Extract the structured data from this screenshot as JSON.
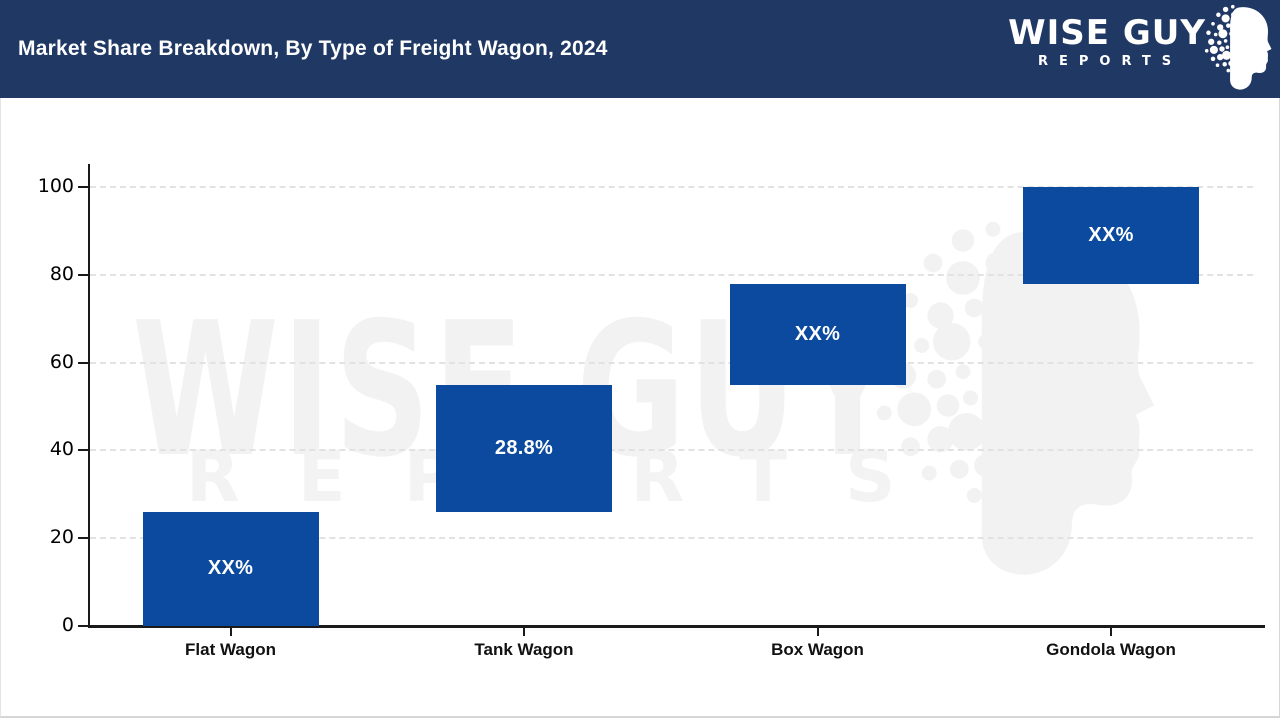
{
  "header": {
    "title": "Market Share Breakdown, By Type of Freight Wagon, 2024",
    "logo": {
      "line1": "WISE GUY",
      "line2": "REPORTS"
    }
  },
  "watermark": {
    "line1": "WISE GUY",
    "line2": "REPORTS"
  },
  "chart_data": {
    "type": "bar",
    "subtype": "floating-segment-waterfall",
    "title": "Market Share Breakdown, By Type of Freight Wagon, 2024",
    "categories": [
      "Flat Wagon",
      "Tank Wagon",
      "Box Wagon",
      "Gondola Wagon"
    ],
    "series": [
      {
        "name": "Market share (%)",
        "segments": [
          {
            "category": "Flat Wagon",
            "start": 0,
            "end": 26,
            "label": "XX%"
          },
          {
            "category": "Tank Wagon",
            "start": 26,
            "end": 54.8,
            "label": "28.8%"
          },
          {
            "category": "Box Wagon",
            "start": 54.8,
            "end": 78,
            "label": "XX%"
          },
          {
            "category": "Gondola Wagon",
            "start": 78,
            "end": 100,
            "label": "XX%"
          }
        ]
      }
    ],
    "xlabel": "",
    "ylabel": "",
    "ylim": [
      0,
      100
    ],
    "yticks": [
      0,
      20,
      40,
      60,
      80,
      100
    ],
    "grid": "horizontal dashed",
    "legend": "none",
    "colors": {
      "bar": "#0b4a9e",
      "bar_label": "#ffffff",
      "header_bg": "#203864",
      "axis": "#1a1a1a",
      "gridline": "#e2e2e2",
      "watermark": "#f2f2f2"
    }
  }
}
